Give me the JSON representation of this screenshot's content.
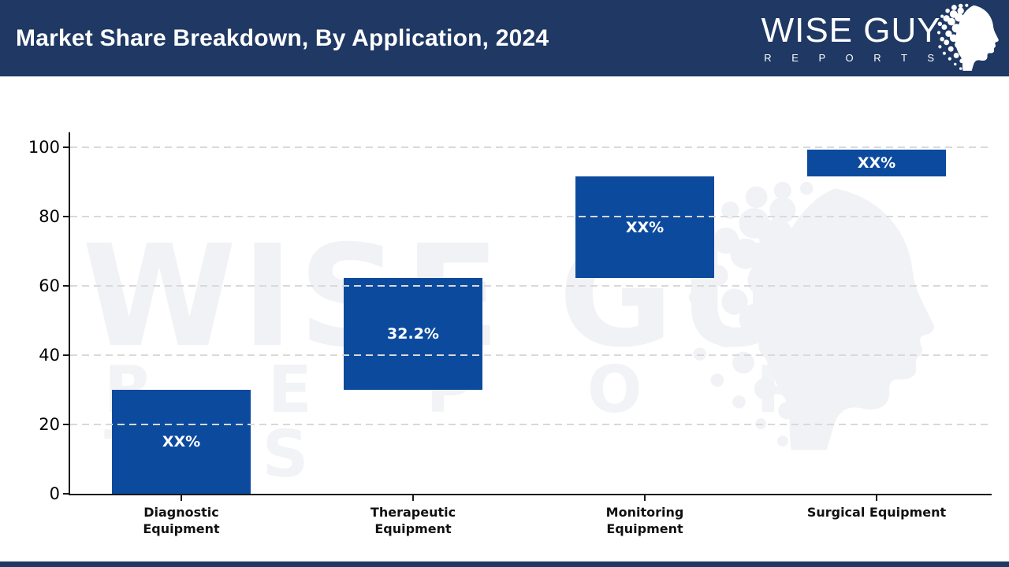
{
  "header": {
    "title": "Market Share Breakdown, By Application, 2024",
    "logo": {
      "line1": "WISE GUY",
      "line2": "R E P O R T S"
    }
  },
  "watermark": {
    "line1": "WISE GUY",
    "line2": "R E P O R T S"
  },
  "chart_data": {
    "type": "bar",
    "subtype": "stacked-waterfall-segments",
    "title": "Market Share Breakdown, By Application, 2024",
    "xlabel": "",
    "ylabel": "",
    "y_ticks": [
      0,
      20,
      40,
      60,
      80,
      100
    ],
    "ylim": [
      0,
      105
    ],
    "grid": "horizontal-dashed",
    "legend": "none",
    "categories": [
      [
        "Diagnostic",
        "Equipment"
      ],
      [
        "Therapeutic",
        "Equipment"
      ],
      [
        "Monitoring",
        "Equipment"
      ],
      [
        "Surgical Equipment"
      ]
    ],
    "bars": [
      {
        "category": "Diagnostic Equipment",
        "label": "XX%",
        "start": 0,
        "end": 30
      },
      {
        "category": "Therapeutic Equipment",
        "label": "32.2%",
        "start": 30,
        "end": 62.2
      },
      {
        "category": "Monitoring Equipment",
        "label": "XX%",
        "start": 62.2,
        "end": 91.5
      },
      {
        "category": "Surgical Equipment",
        "label": "XX%",
        "start": 91.5,
        "end": 99.3
      }
    ]
  },
  "colors": {
    "navy": "#1f3864",
    "bar_blue": "#0c4a9e",
    "axis": "#1a1a1a",
    "grid": "#d9d9d9",
    "watermark": "#f1f2f5"
  }
}
